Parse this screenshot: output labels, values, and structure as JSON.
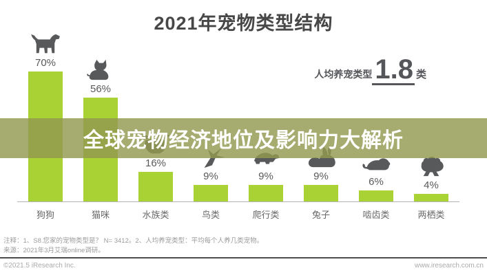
{
  "title": "2021年宠物类型结构",
  "stat": {
    "label": "人均养宠类型",
    "value": "1.8",
    "unit": "类"
  },
  "banner": {
    "text": "全球宠物经济地位及影响力大解析"
  },
  "chart_data": {
    "type": "bar",
    "title": "2021年宠物类型结构",
    "categories": [
      "狗狗",
      "猫咪",
      "水族类",
      "鸟类",
      "爬行类",
      "兔子",
      "啮齿类",
      "两栖类"
    ],
    "values": [
      70,
      56,
      16,
      9,
      9,
      9,
      6,
      4
    ],
    "value_labels": [
      "70%",
      "56%",
      "16%",
      "9%",
      "9%",
      "9%",
      "6%",
      "4%"
    ],
    "icons": [
      "dog-icon",
      "cat-icon",
      "fish-bowl-icon",
      "bird-icon",
      "turtle-icon",
      "rabbit-icon",
      "mouse-icon",
      "frog-icon"
    ],
    "xlabel": "",
    "ylabel": "",
    "ylim": [
      0,
      75
    ],
    "grid": false,
    "legend": "none",
    "bar_color": "#a9d335",
    "annotation": "人均养宠类型 1.8 类"
  },
  "notes": {
    "line1": "注释：1、S8.您家的宠物类型是？ N= 3412。2、人均养宠类型：平均每个人养几类宠物。",
    "line2": "来源：2021年3月艾瑞online调研。"
  },
  "footer": {
    "copyright": "©2021.5 iResearch Inc.",
    "website": "www.iresearch.com.cn"
  },
  "colors": {
    "bar": "#a9d335",
    "banner": "#92984f",
    "icon": "#58595b",
    "title_text": "#474747",
    "note_text": "#9b9b9b"
  }
}
